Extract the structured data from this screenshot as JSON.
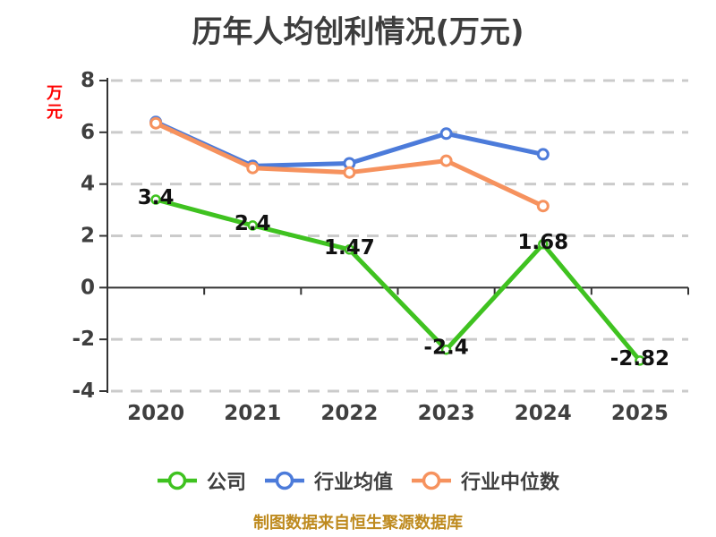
{
  "colors": {
    "company_green": "#3FC220",
    "industry_avg_blue": "#4C7BDA",
    "industry_median_orange": "#F6925E",
    "grid_line": "#CBCBCB",
    "axis_line": "#333333",
    "title_text": "#3D3D3D",
    "tick_text": "#3F3F3F",
    "data_label_text": "#111111",
    "unit_label_red": "#FF0000",
    "source_text": "#BE8A1E",
    "background": "#FFFFFF"
  },
  "chart_data": {
    "type": "line",
    "title": "历年人均创利情况(万元)",
    "y_unit_label": "万元",
    "source_note": "制图数据来自恒生聚源数据库",
    "categories": [
      "2020",
      "2021",
      "2022",
      "2023",
      "2024",
      "2025"
    ],
    "series": [
      {
        "key": "company",
        "name": "公司",
        "color": "#3FC220",
        "values": [
          3.4,
          2.4,
          1.47,
          -2.4,
          1.68,
          -2.82
        ],
        "data_labels": [
          "3.4",
          "2.4",
          "1.47",
          "-2.4",
          "1.68",
          "-2.82"
        ]
      },
      {
        "key": "industry-average",
        "name": "行业均值",
        "color": "#4C7BDA",
        "values": [
          6.4,
          4.7,
          4.8,
          5.95,
          5.15,
          null
        ],
        "data_labels": null
      },
      {
        "key": "industry-median",
        "name": "行业中位数",
        "color": "#F6925E",
        "values": [
          6.35,
          4.62,
          4.45,
          4.9,
          3.15,
          null
        ],
        "data_labels": null
      }
    ],
    "ylim": [
      -4,
      8
    ],
    "y_ticks": [
      8,
      6,
      4,
      2,
      0,
      -2,
      -4
    ],
    "grid": "horizontal-dashed",
    "legend_position": "bottom",
    "x_axis_on_zero": true
  }
}
